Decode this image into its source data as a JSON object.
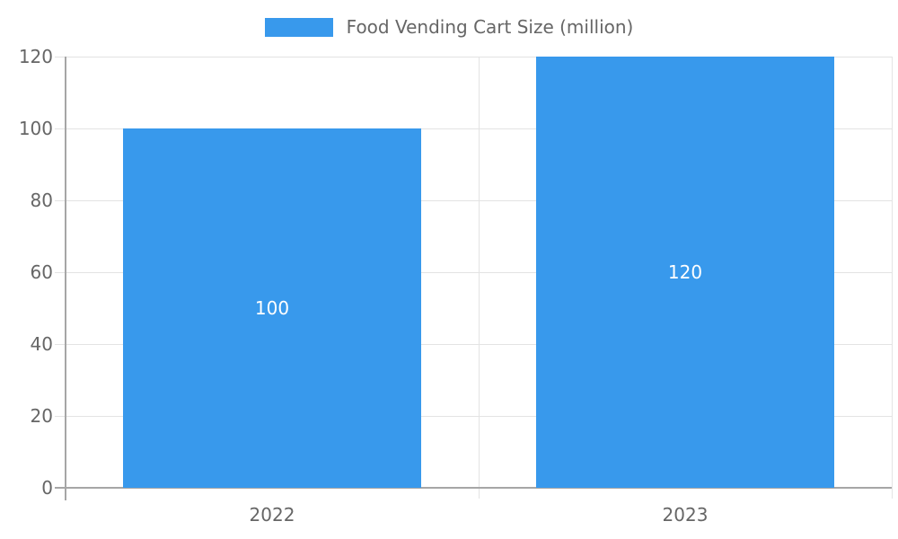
{
  "chart_data": {
    "type": "bar",
    "categories": [
      "2022",
      "2023"
    ],
    "series": [
      {
        "name": "Food Vending Cart Size (million)",
        "values": [
          100,
          120
        ]
      }
    ],
    "ylim": [
      0,
      120
    ],
    "yticks": [
      0,
      20,
      40,
      60,
      80,
      100,
      120
    ],
    "xlabel": "",
    "ylabel": "",
    "legend_position": "top",
    "grid": true,
    "data_labels_visible": true,
    "bar_width_fraction": 0.72,
    "colors": {
      "bar": "#3899EC",
      "axis_text": "#666666",
      "data_label_text": "#FFFFFF",
      "gridline": "#E3E3E3",
      "axis_line": "#A6A6A6",
      "background": "#FFFFFF"
    }
  }
}
